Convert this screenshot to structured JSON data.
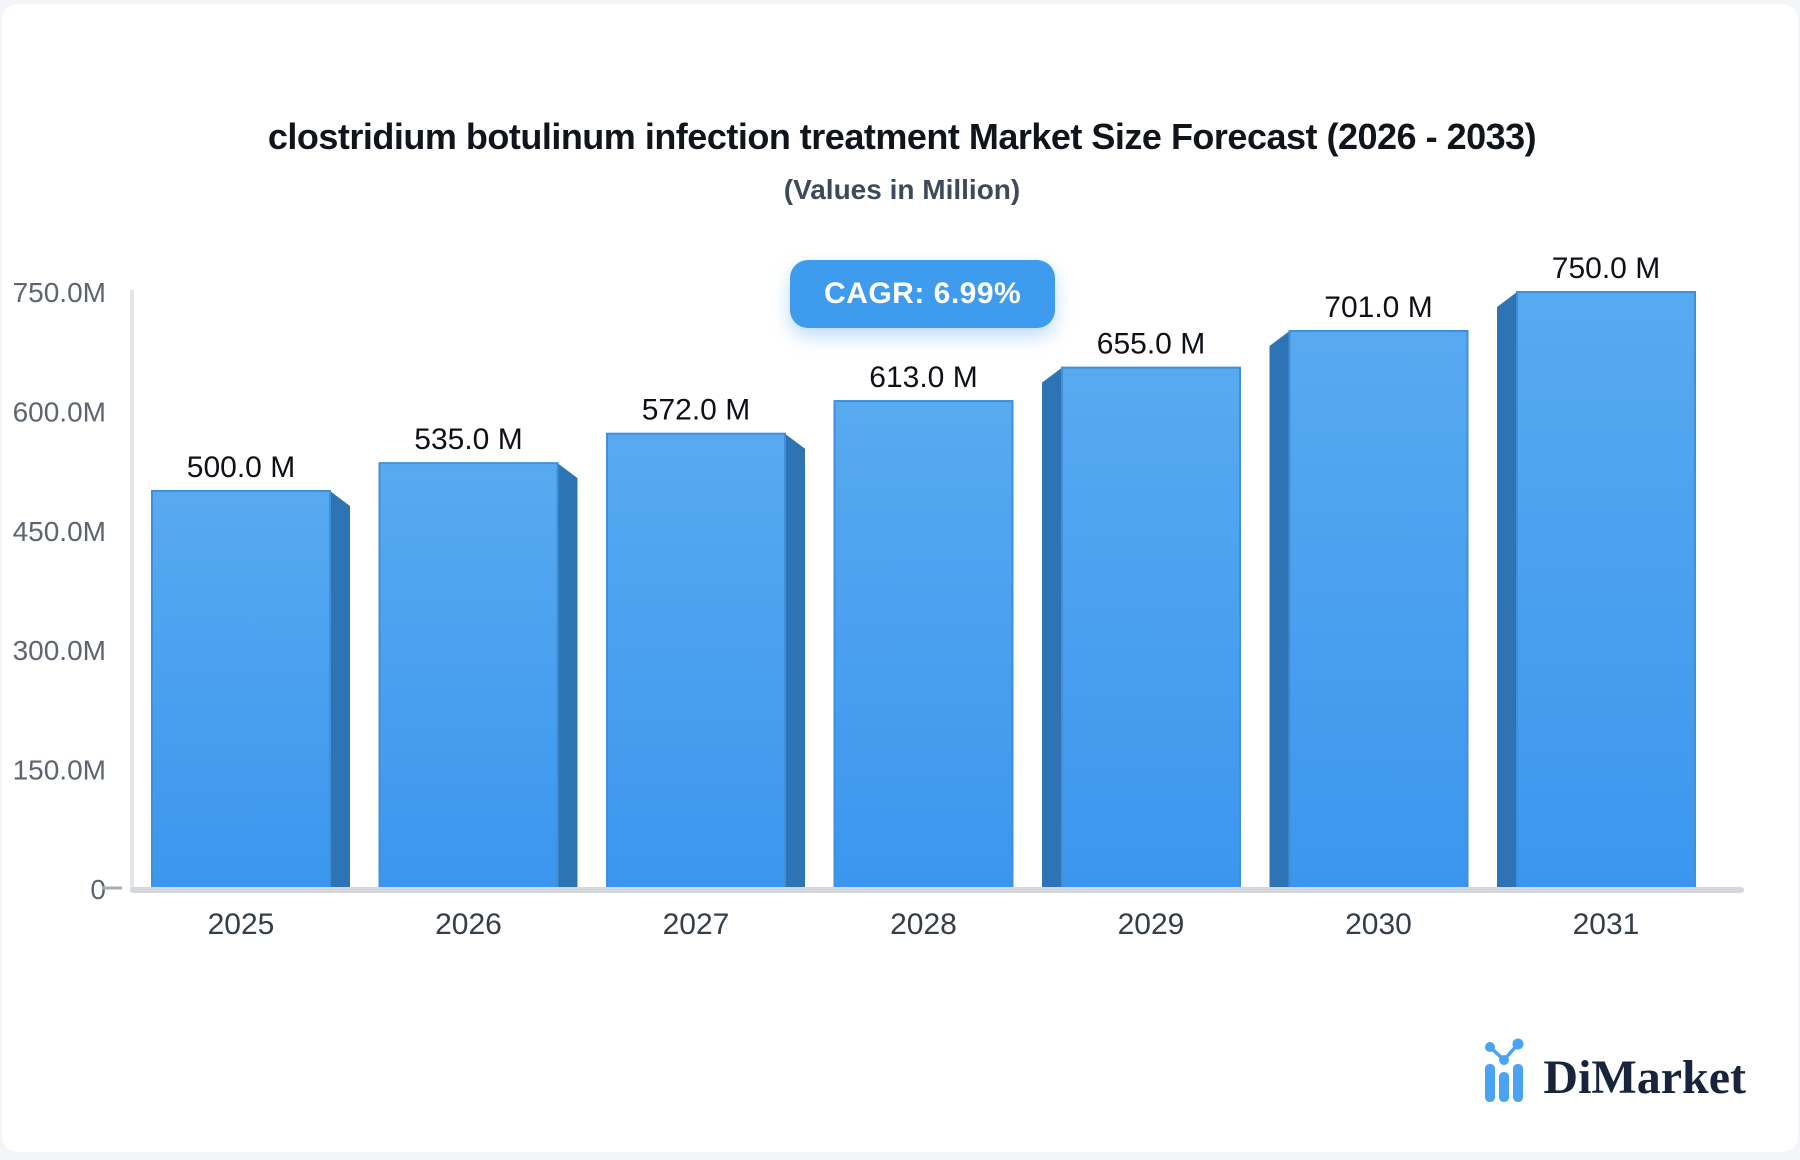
{
  "title": "clostridium botulinum infection treatment Market Size Forecast (2026 - 2033)",
  "subtitle": "(Values in Million)",
  "cagr_badge": "CAGR: 6.99%",
  "brand": {
    "name": "DiMarket",
    "icon": "bar-line-chart-icon"
  },
  "colors": {
    "bar_face_top": "#58aaf0",
    "bar_face_bottom": "#3b96ee",
    "bar_face_border": "#3f8fd9",
    "bar_side": "#2e74b5",
    "badge_bg": "#3e9bed",
    "axis_line": "#e4e7ea",
    "baseline": "#d4d7db",
    "tick_dash": "#a6adb5",
    "y_label": "#5c6570",
    "x_label": "#343d4a",
    "value_label": "#0d1117",
    "brand_icon_blue": "#4aa3f3"
  },
  "chart_data": {
    "type": "bar",
    "title": "clostridium botulinum infection treatment Market Size Forecast (2026 - 2033)",
    "subtitle": "(Values in Million)",
    "categories": [
      "2025",
      "2026",
      "2027",
      "2028",
      "2029",
      "2030",
      "2031"
    ],
    "values": [
      500,
      535,
      572,
      613,
      655,
      701,
      750
    ],
    "value_labels": [
      "500.0 M",
      "535.0 M",
      "572.0 M",
      "613.0 M",
      "655.0 M",
      "701.0 M",
      "750.0 M"
    ],
    "unit": "Million",
    "ylim": [
      0,
      750
    ],
    "y_ticks": [
      {
        "value": 750,
        "label": "750.0M"
      },
      {
        "value": 600,
        "label": "600.0M"
      },
      {
        "value": 450,
        "label": "450.0M"
      },
      {
        "value": 300,
        "label": "300.0M"
      },
      {
        "value": 150,
        "label": "150.0M"
      },
      {
        "value": 0,
        "label": "0"
      }
    ],
    "xlabel": "",
    "ylabel": "",
    "grid": false,
    "legend": false,
    "style": "3d-perspective-bars"
  }
}
